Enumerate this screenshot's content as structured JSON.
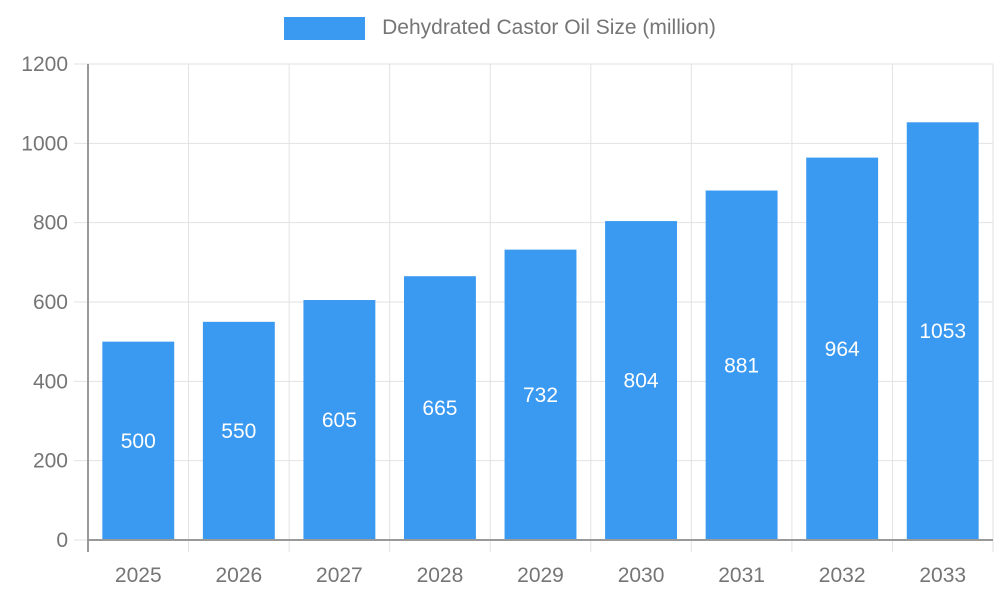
{
  "legend": {
    "label": "Dehydrated Castor Oil Size (million)",
    "position": "top-center"
  },
  "chart_data": {
    "type": "bar",
    "title": "Dehydrated Castor Oil Size (million)",
    "categories": [
      "2025",
      "2026",
      "2027",
      "2028",
      "2029",
      "2030",
      "2031",
      "2032",
      "2033"
    ],
    "values": [
      500,
      550,
      605,
      665,
      732,
      804,
      881,
      964,
      1053
    ],
    "xlabel": "",
    "ylabel": "",
    "ylim": [
      0,
      1200
    ],
    "y_ticks": [
      0,
      200,
      400,
      600,
      800,
      1000,
      1200
    ],
    "grid": true,
    "value_labels_inside_bars": true,
    "legend_position": "top",
    "colors": {
      "bar": "#3a99f0",
      "axis_line": "#999999",
      "grid_line": "#e2e2e2",
      "tick_text": "#757575",
      "bar_value_text": "#ffffff",
      "background": "#ffffff"
    }
  }
}
